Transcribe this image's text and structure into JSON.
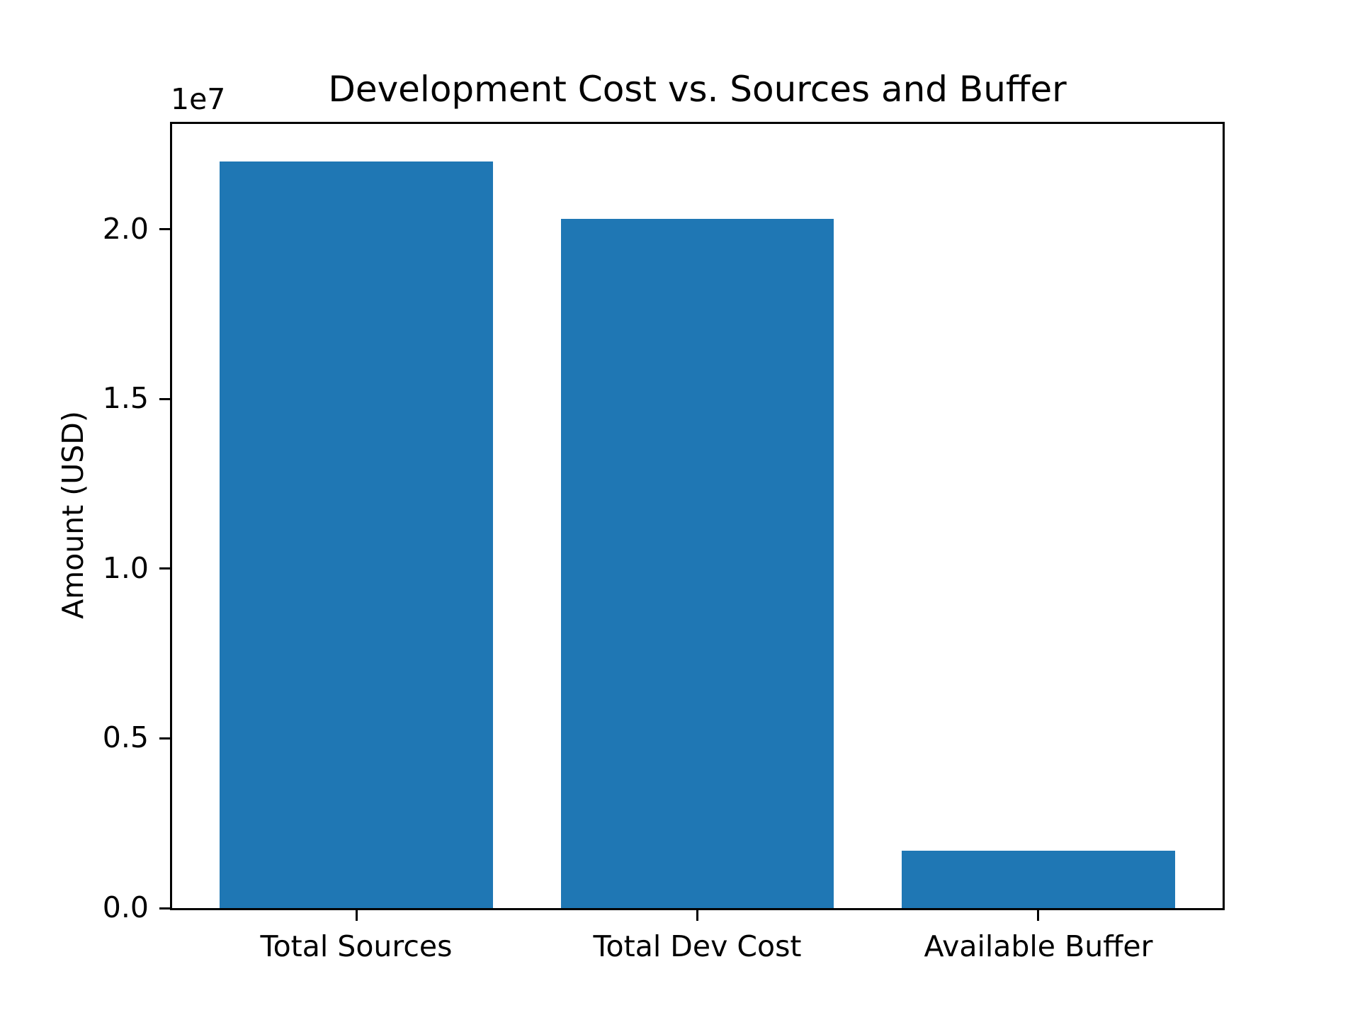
{
  "chart_data": {
    "type": "bar",
    "title": "Development Cost vs. Sources and Buffer",
    "xlabel": "",
    "ylabel": "Amount (USD)",
    "categories": [
      "Total Sources",
      "Total Dev Cost",
      "Available Buffer"
    ],
    "values": [
      22000000,
      20300000,
      1700000
    ],
    "bar_color": "#1f77b4",
    "bar_width_data_units": 0.8,
    "xlim": [
      -0.54,
      2.54
    ],
    "ylim": [
      0,
      23100000
    ],
    "yaxis_offset_label": "1e7",
    "yticks": {
      "values": [
        0,
        5000000,
        10000000,
        15000000,
        20000000
      ],
      "labels": [
        "0.0",
        "0.5",
        "1.0",
        "1.5",
        "2.0"
      ]
    },
    "grid": false,
    "legend": null,
    "axes_color": "#000000",
    "background_color": "#ffffff"
  }
}
